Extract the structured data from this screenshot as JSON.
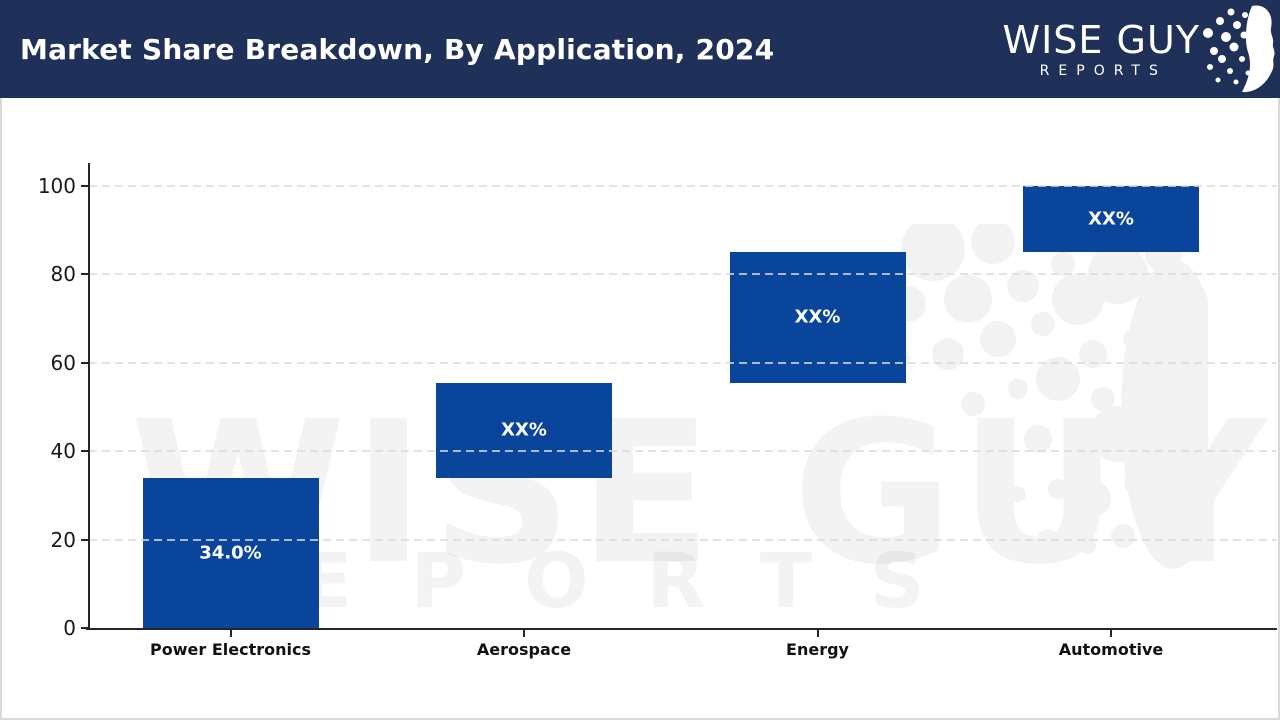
{
  "header": {
    "title": "Market Share Breakdown, By Application, 2024",
    "bg_color": "#203159",
    "logo": {
      "line1": "WISE GUY",
      "line2": "REPORTS"
    }
  },
  "watermark": {
    "line1": "WISE GUY",
    "line2": "REPORTS"
  },
  "chart_data": {
    "type": "bar",
    "subtype": "waterfall",
    "title": "Market Share Breakdown, By Application, 2024",
    "categories": [
      "Power Electronics",
      "Aerospace",
      "Energy",
      "Automotive"
    ],
    "segments": [
      {
        "category": "Power Electronics",
        "start": 0,
        "end": 34,
        "label": "34.0%"
      },
      {
        "category": "Aerospace",
        "start": 34,
        "end": 55.5,
        "label": "XX%"
      },
      {
        "category": "Energy",
        "start": 55.5,
        "end": 85,
        "label": "XX%"
      },
      {
        "category": "Automotive",
        "start": 85,
        "end": 100,
        "label": "XX%"
      }
    ],
    "y_ticks": [
      0,
      20,
      40,
      60,
      80,
      100
    ],
    "ylim": [
      0,
      105
    ],
    "bar_color": "#09459b",
    "grid": "dashed-horizontal",
    "legend_position": "none",
    "xlabel": "",
    "ylabel": ""
  }
}
